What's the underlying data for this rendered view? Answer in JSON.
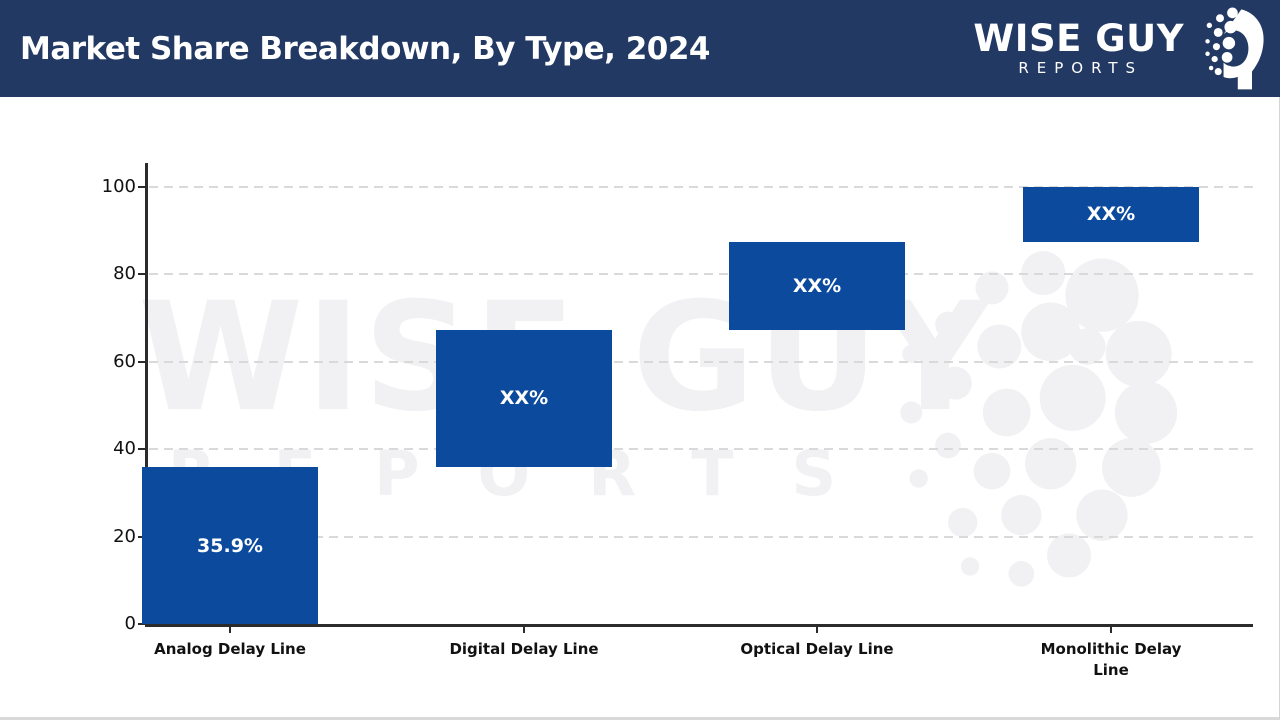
{
  "header": {
    "title": "Market Share Breakdown, By Type, 2024",
    "bg_color": "#223963",
    "logo": {
      "line1": "WISE GUY",
      "line2": "REPORTS"
    }
  },
  "watermark": {
    "line1": "WISE GUY",
    "line2": "REPORTS"
  },
  "chart_data": {
    "type": "bar",
    "subtype": "waterfall",
    "title": "Market Share Breakdown, By Type, 2024",
    "categories": [
      "Analog Delay Line",
      "Digital Delay Line",
      "Optical Delay Line",
      "Monolithic Delay Line"
    ],
    "segments": [
      {
        "category": "Analog Delay Line",
        "start": 0,
        "end": 35.9,
        "label": "35.9%"
      },
      {
        "category": "Digital Delay Line",
        "start": 35.9,
        "end": 67.3,
        "label": "XX%"
      },
      {
        "category": "Optical Delay Line",
        "start": 67.3,
        "end": 87.5,
        "label": "XX%"
      },
      {
        "category": "Monolithic Delay Line",
        "start": 87.5,
        "end": 100,
        "label": "XX%"
      }
    ],
    "xlabel": "",
    "ylabel": "",
    "ylim": [
      0,
      100
    ],
    "yticks": [
      0,
      20,
      40,
      60,
      80,
      100
    ],
    "grid": true,
    "grid_style": "dashed",
    "legend": "none",
    "bar_color": "#0C4A9E",
    "bar_label_color": "#ffffff"
  }
}
